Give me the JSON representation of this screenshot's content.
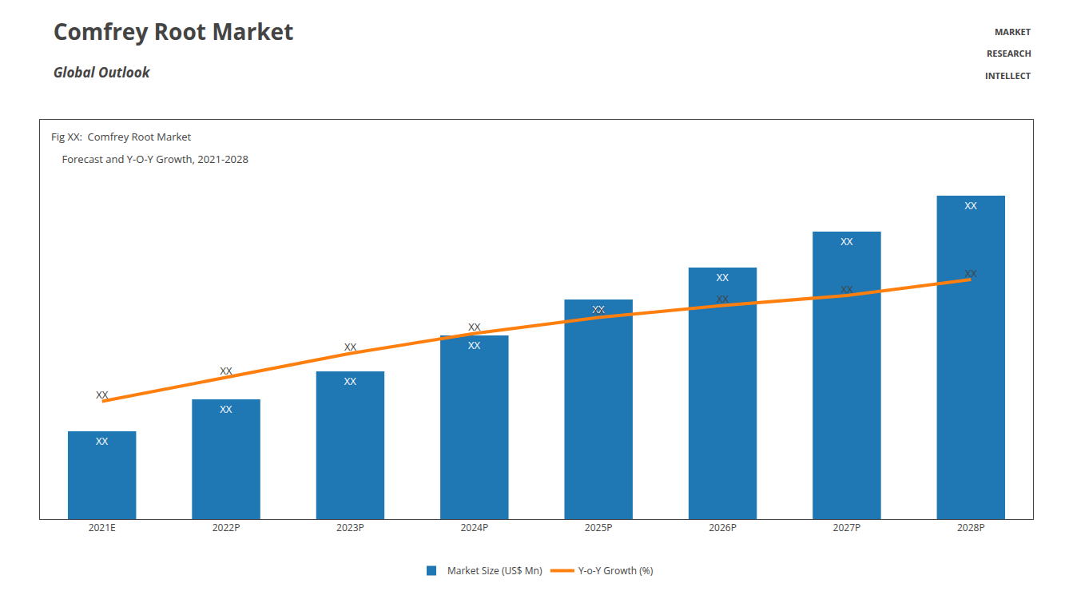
{
  "chart_data": {
    "type": "bar",
    "title": "Comfrey Root Market",
    "subtitle": "Global Outlook",
    "annotations": [
      "Fig XX:  Comfrey Root Market",
      "    Forecast and Y-O-Y Growth, 2021-2028",
      "MARKET",
      "RESEARCH",
      "INTELLECT"
    ],
    "categories": [
      "2021E",
      "2022P",
      "2023P",
      "2024P",
      "2025P",
      "2026P",
      "2027P",
      "2028P"
    ],
    "series": [
      {
        "name": "Market Size (US$ Mn)",
        "type": "bar",
        "values": [
          0.22,
          0.3,
          0.37,
          0.46,
          0.55,
          0.63,
          0.72,
          0.81
        ],
        "value_labels": [
          "XX",
          "XX",
          "XX",
          "XX",
          "XX",
          "XX",
          "XX",
          "XX"
        ]
      },
      {
        "name": "Y-o-Y Growth (%)",
        "type": "line",
        "values": [
          0.295,
          0.355,
          0.415,
          0.465,
          0.505,
          0.535,
          0.56,
          0.6
        ],
        "value_labels": [
          "XX",
          "XX",
          "XX",
          "XX",
          "XX",
          "XX",
          "XX",
          "XX"
        ]
      }
    ],
    "ylim": [
      0,
      1
    ],
    "tick_labels": "x",
    "data_labels": true,
    "grid": false,
    "legend": "bottom"
  }
}
